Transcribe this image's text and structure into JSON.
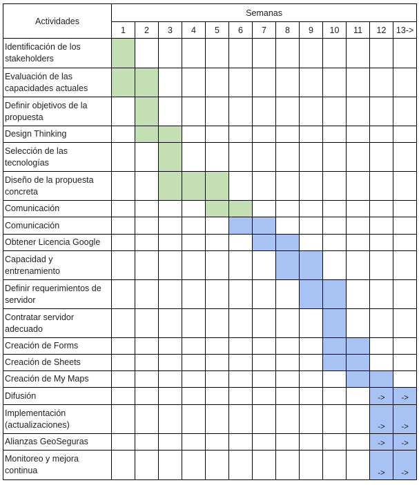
{
  "table": {
    "header_activity": "Actividades",
    "header_weeks": "Semanas",
    "weeks": [
      "1",
      "2",
      "3",
      "4",
      "5",
      "6",
      "7",
      "8",
      "9",
      "10",
      "11",
      "12",
      "13->"
    ],
    "colors": {
      "phase1": "#c4dfb3",
      "phase2": "#a8c2f3"
    },
    "rows": [
      {
        "label": "Identificación de los stakeholders",
        "span": [
          1,
          1
        ],
        "phase": "phase1"
      },
      {
        "label": "Evaluación de las capacidades actuales",
        "span": [
          1,
          2
        ],
        "phase": "phase1"
      },
      {
        "label": "Definir objetivos de la propuesta",
        "span": [
          2,
          2
        ],
        "phase": "phase1"
      },
      {
        "label": "Design Thinking",
        "span": [
          2,
          3
        ],
        "phase": "phase1"
      },
      {
        "label": "Selección de las tecnologías",
        "span": [
          3,
          3
        ],
        "phase": "phase1"
      },
      {
        "label": "Diseño de la propuesta concreta",
        "span": [
          3,
          5
        ],
        "phase": "phase1"
      },
      {
        "label": "Comunicación",
        "span": [
          5,
          6
        ],
        "phase": "phase1"
      },
      {
        "label": "Comunicación",
        "span": [
          6,
          7
        ],
        "phase": "phase2"
      },
      {
        "label": "Obtener Licencia Google",
        "span": [
          7,
          8
        ],
        "phase": "phase2"
      },
      {
        "label": "Capacidad y entrenamiento",
        "span": [
          8,
          9
        ],
        "phase": "phase2"
      },
      {
        "label": "Definir requerimientos de servidor",
        "span": [
          9,
          10
        ],
        "phase": "phase2"
      },
      {
        "label": "Contratar servidor adecuado",
        "span": [
          10,
          10
        ],
        "phase": "phase2"
      },
      {
        "label": "Creación de Forms",
        "span": [
          10,
          11
        ],
        "phase": "phase2"
      },
      {
        "label": "Creación de Sheets",
        "span": [
          10,
          11
        ],
        "phase": "phase2"
      },
      {
        "label": "Creación de My Maps",
        "span": [
          11,
          12
        ],
        "phase": "phase2"
      },
      {
        "label": "Difusión",
        "span": [
          12,
          13
        ],
        "phase": "phase2",
        "marker": "->"
      },
      {
        "label": "Implementación (actualizaciones)",
        "span": [
          12,
          13
        ],
        "phase": "phase2",
        "marker": "->"
      },
      {
        "label": "Alianzas GeoSeguras",
        "span": [
          12,
          13
        ],
        "phase": "phase2",
        "marker": "->"
      },
      {
        "label": "Monitoreo y mejora continua",
        "span": [
          12,
          13
        ],
        "phase": "phase2",
        "marker": "->"
      }
    ]
  }
}
